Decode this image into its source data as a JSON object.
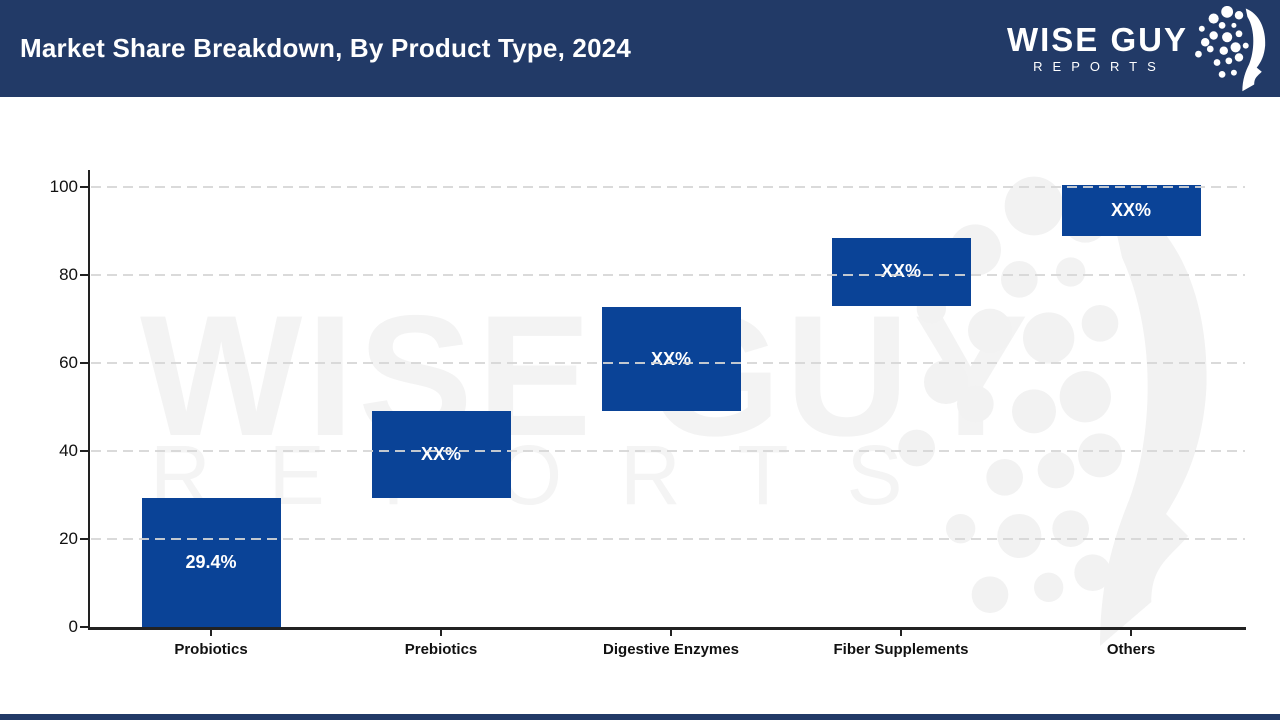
{
  "header": {
    "title": "Market Share Breakdown, By Product Type, 2024",
    "bg_color": "#223a67",
    "logo": {
      "line1": "WISE GUY",
      "line2": "REPORTS"
    }
  },
  "watermark": {
    "line1": "WISE GUY",
    "line2": "REPORTS"
  },
  "footer": {
    "bg_color": "#223a67"
  },
  "chart_data": {
    "type": "bar",
    "subtype": "waterfall",
    "title": "Market Share Breakdown, By Product Type, 2024",
    "categories": [
      "Probiotics",
      "Prebiotics",
      "Digestive Enzymes",
      "Fiber Supplements",
      "Others"
    ],
    "segments": [
      {
        "category": "Probiotics",
        "start": 0,
        "end": 29.4,
        "label": "29.4%"
      },
      {
        "category": "Prebiotics",
        "start": 29.4,
        "end": 49.1,
        "label": "XX%"
      },
      {
        "category": "Digestive Enzymes",
        "start": 49.1,
        "end": 72.7,
        "label": "XX%"
      },
      {
        "category": "Fiber Supplements",
        "start": 73.0,
        "end": 88.4,
        "label": "XX%"
      },
      {
        "category": "Others",
        "start": 88.9,
        "end": 100.5,
        "label": "XX%"
      }
    ],
    "yticks": [
      0,
      20,
      40,
      60,
      80,
      100
    ],
    "ylim": [
      0,
      105
    ],
    "grid": true,
    "legend": false,
    "bar_color": "#0a4397",
    "bar_label_color": "#ffffff",
    "gridline_color": "#d6d6d6",
    "axis_color": "#222222",
    "xlabel": "",
    "ylabel": ""
  }
}
